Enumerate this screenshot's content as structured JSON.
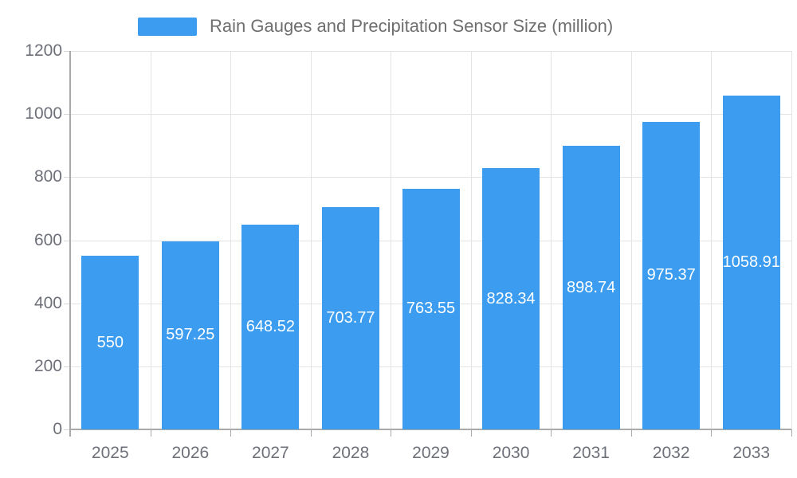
{
  "legend": {
    "label": "Rain Gauges and Precipitation Sensor Size (million)"
  },
  "chart_data": {
    "type": "bar",
    "title": "Rain Gauges and Precipitation Sensor Size (million)",
    "categories": [
      "2025",
      "2026",
      "2027",
      "2028",
      "2029",
      "2030",
      "2031",
      "2032",
      "2033"
    ],
    "values": [
      550,
      597.25,
      648.52,
      703.77,
      763.55,
      828.34,
      898.74,
      975.37,
      1058.91
    ],
    "value_labels": [
      "550",
      "597.25",
      "648.52",
      "703.77",
      "763.55",
      "828.34",
      "898.74",
      "975.37",
      "1058.91"
    ],
    "xlabel": "",
    "ylabel": "",
    "ylim": [
      0,
      1200
    ],
    "yticks": [
      0,
      200,
      400,
      600,
      800,
      1000,
      1200
    ],
    "grid": true,
    "legend_position": "top-center",
    "value_label_position": "inside-center"
  },
  "colors": {
    "bar": "#3b9cf0",
    "bar_label": "#ffffff",
    "title_text": "#6e6e6e",
    "axis_text": "#6e7079",
    "axis_line": "#aaaaaa",
    "gridline": "#e3e3e3",
    "ytick_mark": "#d7d7d7"
  }
}
